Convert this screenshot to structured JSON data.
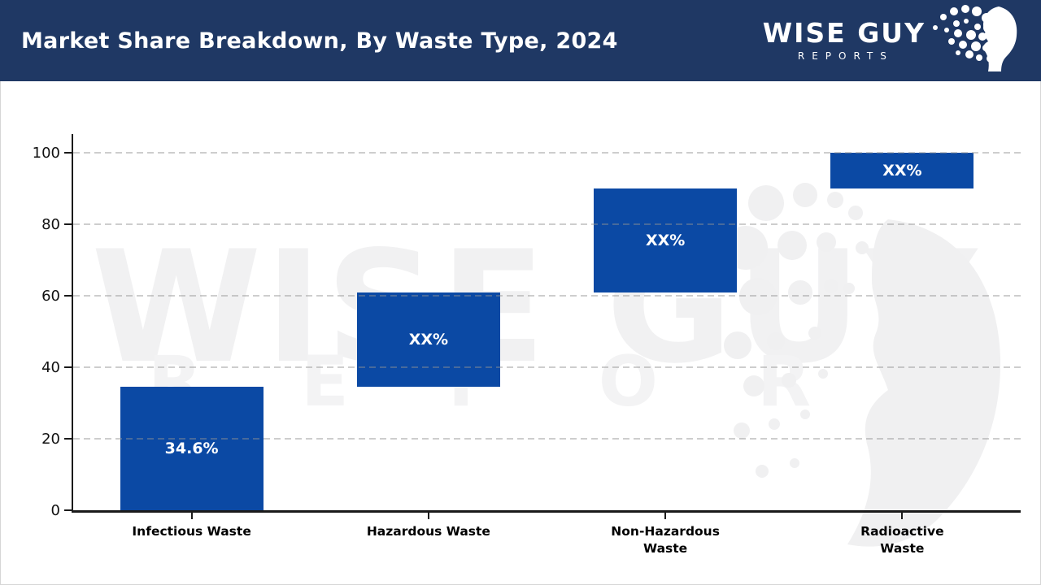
{
  "header": {
    "title": "Market Share Breakdown, By Waste Type, 2024",
    "logo": {
      "name": "WISE GUY",
      "sub": "REPORTS"
    }
  },
  "watermark": {
    "line1": "WISE GUY",
    "line2": "R E P O R T S"
  },
  "chart_data": {
    "type": "bar",
    "subtype": "waterfall",
    "title": "Market Share Breakdown, By Waste Type, 2024",
    "categories": [
      "Infectious Waste",
      "Hazardous Waste",
      "Non-Hazardous Waste",
      "Radioactive Waste"
    ],
    "segments": [
      {
        "category": "Infectious Waste",
        "start": 0,
        "end": 34.6,
        "label": "34.6%"
      },
      {
        "category": "Hazardous Waste",
        "start": 34.6,
        "end": 61,
        "label": "XX%"
      },
      {
        "category": "Non-Hazardous Waste",
        "start": 61,
        "end": 90,
        "label": "XX%"
      },
      {
        "category": "Radioactive Waste",
        "start": 90,
        "end": 100,
        "label": "XX%"
      }
    ],
    "ylim": [
      0,
      100
    ],
    "yticks": [
      0,
      20,
      40,
      60,
      80,
      100
    ],
    "grid": true,
    "legend_position": "none",
    "colors": {
      "bar": "#0b49a4",
      "header_bg": "#1f3864",
      "grid": "#919191",
      "axis": "#1a1a1a",
      "value_label": "#ffffff"
    }
  }
}
